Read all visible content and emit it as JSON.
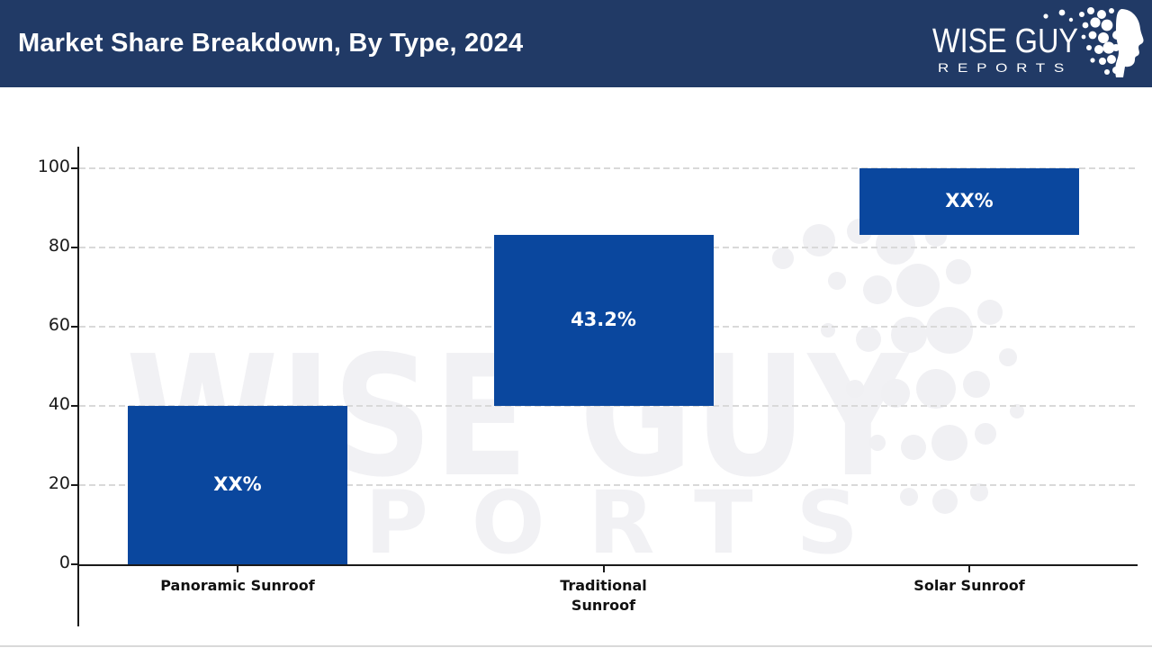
{
  "header": {
    "title": "Market Share Breakdown, By Type, 2024",
    "bg_color": "#213a66",
    "logo": {
      "line1": "WISE GUY",
      "line2": "REPORTS"
    }
  },
  "watermark": {
    "line1": "WISE GUY",
    "line2": "REPORTS"
  },
  "chart_data": {
    "type": "bar",
    "subtype": "floating-waterfall",
    "title": "Market Share Breakdown, By Type, 2024",
    "categories": [
      "Panoramic Sunroof",
      "Traditional\nSunroof",
      "Solar Sunroof"
    ],
    "series": [
      {
        "name": "Market Share",
        "segments": [
          {
            "category": "Panoramic Sunroof",
            "start": 0,
            "end": 40,
            "label": "XX%"
          },
          {
            "category": "Traditional Sunroof",
            "start": 40,
            "end": 83.2,
            "label": "43.2%"
          },
          {
            "category": "Solar Sunroof",
            "start": 83.2,
            "end": 100,
            "label": "XX%"
          }
        ]
      }
    ],
    "bar_labels": [
      "XX%",
      "43.2%",
      "XX%"
    ],
    "xlabel": "",
    "ylabel": "",
    "ylim": [
      0,
      100
    ],
    "yticks": [
      0,
      20,
      40,
      60,
      80,
      100
    ],
    "grid": "horizontal-dashed",
    "legend": "none",
    "bar_color": "#0a479e",
    "gridline_color": "#d9d9d9",
    "axis_color": "#1a1a1a"
  }
}
